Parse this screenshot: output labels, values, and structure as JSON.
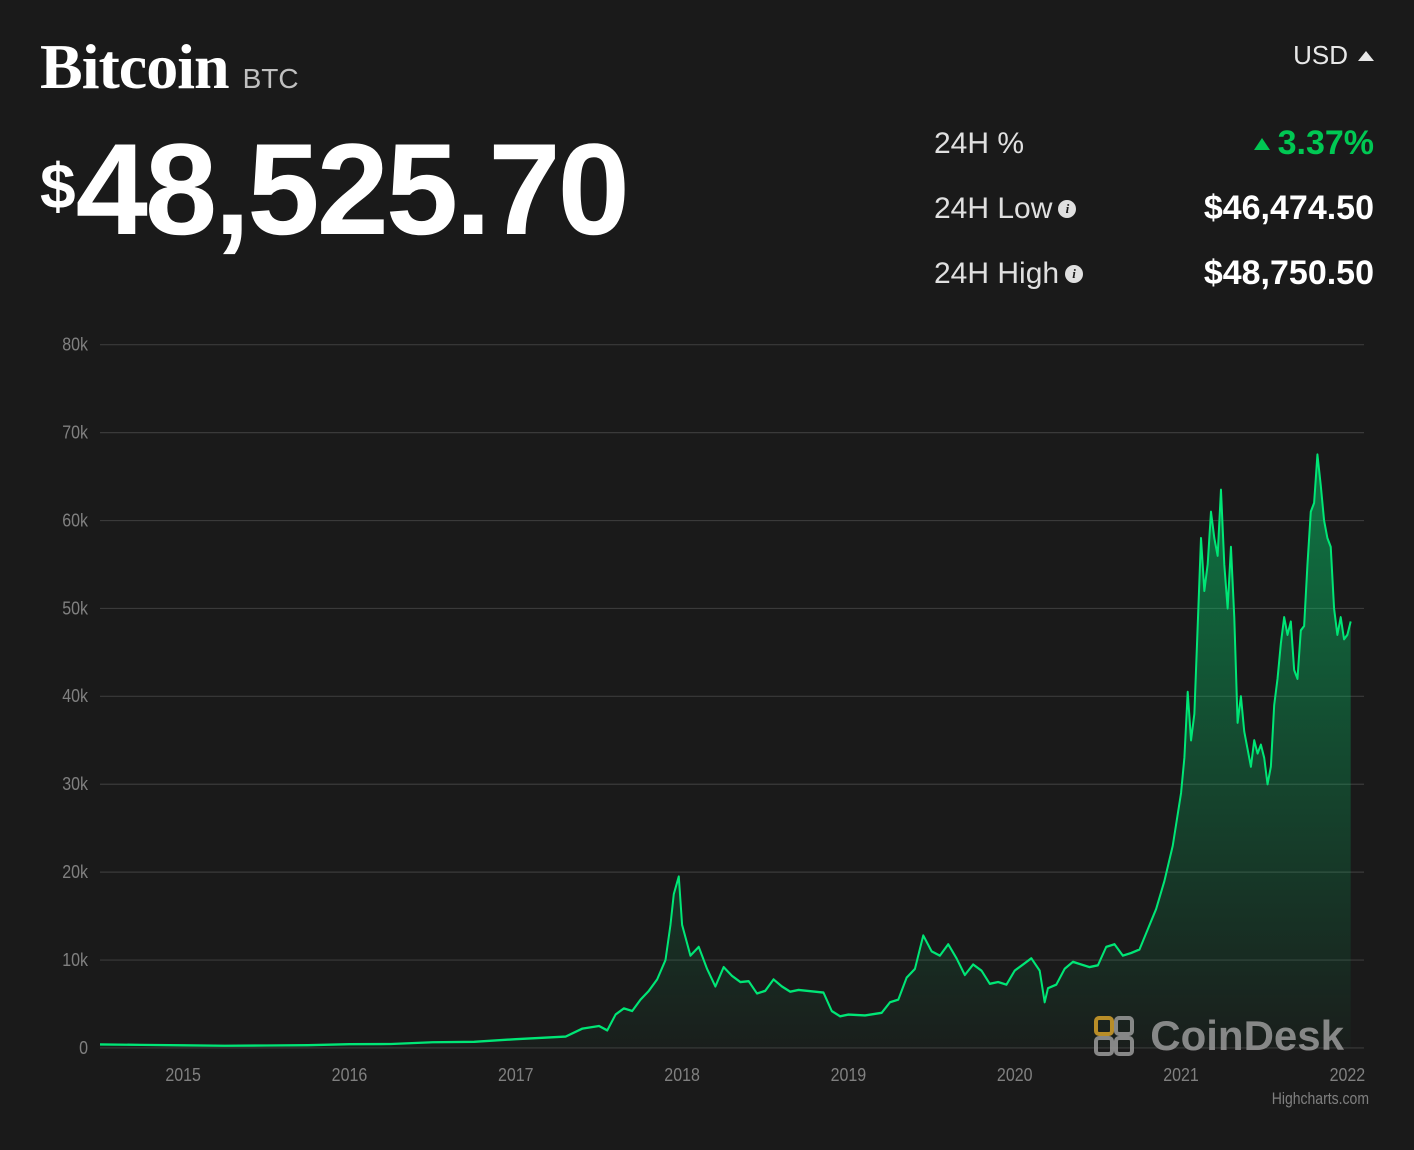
{
  "header": {
    "asset_name": "Bitcoin",
    "asset_ticker": "BTC",
    "currency_label": "USD"
  },
  "price": {
    "currency_symbol": "$",
    "value": "48,525.70"
  },
  "stats": {
    "change_24h": {
      "label": "24H %",
      "value": "3.37%",
      "color": "#00c853",
      "direction": "up"
    },
    "low_24h": {
      "label": "24H Low",
      "value": "$46,474.50"
    },
    "high_24h": {
      "label": "24H High",
      "value": "$48,750.50"
    }
  },
  "chart": {
    "type": "area",
    "background_color": "#1a1a1a",
    "line_color": "#00e676",
    "fill_color_top": "rgba(0,230,118,0.45)",
    "fill_color_bottom": "rgba(0,230,118,0.02)",
    "grid_color": "#3a3a3a",
    "axis_label_color": "#808080",
    "axis_label_fontsize": 16,
    "line_width": 2,
    "ylim": [
      0,
      80000
    ],
    "ytick_step": 10000,
    "ytick_labels": [
      "0",
      "10k",
      "20k",
      "30k",
      "40k",
      "50k",
      "60k",
      "70k",
      "80k"
    ],
    "xlim": [
      2014.5,
      2022.1
    ],
    "xtick_positions": [
      2015,
      2016,
      2017,
      2018,
      2019,
      2020,
      2021,
      2022
    ],
    "xtick_labels": [
      "2015",
      "2016",
      "2017",
      "2018",
      "2019",
      "2020",
      "2021",
      "2022"
    ],
    "credit": "Highcharts.com",
    "series": [
      [
        2014.5,
        400
      ],
      [
        2014.75,
        350
      ],
      [
        2015.0,
        300
      ],
      [
        2015.25,
        250
      ],
      [
        2015.5,
        280
      ],
      [
        2015.75,
        320
      ],
      [
        2016.0,
        430
      ],
      [
        2016.25,
        450
      ],
      [
        2016.5,
        650
      ],
      [
        2016.75,
        700
      ],
      [
        2017.0,
        1000
      ],
      [
        2017.1,
        1100
      ],
      [
        2017.2,
        1200
      ],
      [
        2017.3,
        1300
      ],
      [
        2017.4,
        2200
      ],
      [
        2017.5,
        2500
      ],
      [
        2017.55,
        2000
      ],
      [
        2017.6,
        3800
      ],
      [
        2017.65,
        4500
      ],
      [
        2017.7,
        4200
      ],
      [
        2017.75,
        5500
      ],
      [
        2017.8,
        6500
      ],
      [
        2017.85,
        7800
      ],
      [
        2017.9,
        10000
      ],
      [
        2017.93,
        14000
      ],
      [
        2017.95,
        17500
      ],
      [
        2017.98,
        19500
      ],
      [
        2018.0,
        14000
      ],
      [
        2018.05,
        10500
      ],
      [
        2018.1,
        11500
      ],
      [
        2018.15,
        9000
      ],
      [
        2018.2,
        7000
      ],
      [
        2018.25,
        9200
      ],
      [
        2018.3,
        8200
      ],
      [
        2018.35,
        7500
      ],
      [
        2018.4,
        7600
      ],
      [
        2018.45,
        6200
      ],
      [
        2018.5,
        6500
      ],
      [
        2018.55,
        7800
      ],
      [
        2018.6,
        7000
      ],
      [
        2018.65,
        6400
      ],
      [
        2018.7,
        6600
      ],
      [
        2018.75,
        6500
      ],
      [
        2018.8,
        6400
      ],
      [
        2018.85,
        6300
      ],
      [
        2018.9,
        4200
      ],
      [
        2018.95,
        3600
      ],
      [
        2019.0,
        3800
      ],
      [
        2019.1,
        3700
      ],
      [
        2019.2,
        4000
      ],
      [
        2019.25,
        5200
      ],
      [
        2019.3,
        5500
      ],
      [
        2019.35,
        8000
      ],
      [
        2019.4,
        9000
      ],
      [
        2019.45,
        12800
      ],
      [
        2019.5,
        11000
      ],
      [
        2019.55,
        10500
      ],
      [
        2019.6,
        11800
      ],
      [
        2019.65,
        10200
      ],
      [
        2019.7,
        8300
      ],
      [
        2019.75,
        9500
      ],
      [
        2019.8,
        8800
      ],
      [
        2019.85,
        7300
      ],
      [
        2019.9,
        7500
      ],
      [
        2019.95,
        7200
      ],
      [
        2020.0,
        8800
      ],
      [
        2020.05,
        9500
      ],
      [
        2020.1,
        10200
      ],
      [
        2020.15,
        8800
      ],
      [
        2020.18,
        5200
      ],
      [
        2020.2,
        6800
      ],
      [
        2020.25,
        7200
      ],
      [
        2020.3,
        9000
      ],
      [
        2020.35,
        9800
      ],
      [
        2020.4,
        9500
      ],
      [
        2020.45,
        9200
      ],
      [
        2020.5,
        9400
      ],
      [
        2020.55,
        11500
      ],
      [
        2020.6,
        11800
      ],
      [
        2020.65,
        10500
      ],
      [
        2020.7,
        10800
      ],
      [
        2020.75,
        11200
      ],
      [
        2020.8,
        13500
      ],
      [
        2020.85,
        15800
      ],
      [
        2020.9,
        19000
      ],
      [
        2020.95,
        23000
      ],
      [
        2021.0,
        29000
      ],
      [
        2021.02,
        33000
      ],
      [
        2021.04,
        40500
      ],
      [
        2021.06,
        35000
      ],
      [
        2021.08,
        38000
      ],
      [
        2021.1,
        48000
      ],
      [
        2021.12,
        58000
      ],
      [
        2021.14,
        52000
      ],
      [
        2021.16,
        55000
      ],
      [
        2021.18,
        61000
      ],
      [
        2021.2,
        58000
      ],
      [
        2021.22,
        56000
      ],
      [
        2021.24,
        63500
      ],
      [
        2021.26,
        55000
      ],
      [
        2021.28,
        50000
      ],
      [
        2021.3,
        57000
      ],
      [
        2021.32,
        49000
      ],
      [
        2021.34,
        37000
      ],
      [
        2021.36,
        40000
      ],
      [
        2021.38,
        36000
      ],
      [
        2021.4,
        34000
      ],
      [
        2021.42,
        32000
      ],
      [
        2021.44,
        35000
      ],
      [
        2021.46,
        33500
      ],
      [
        2021.48,
        34500
      ],
      [
        2021.5,
        33000
      ],
      [
        2021.52,
        30000
      ],
      [
        2021.54,
        32000
      ],
      [
        2021.56,
        39000
      ],
      [
        2021.58,
        42000
      ],
      [
        2021.6,
        46000
      ],
      [
        2021.62,
        49000
      ],
      [
        2021.64,
        47000
      ],
      [
        2021.66,
        48500
      ],
      [
        2021.68,
        43000
      ],
      [
        2021.7,
        42000
      ],
      [
        2021.72,
        47500
      ],
      [
        2021.74,
        48000
      ],
      [
        2021.76,
        55000
      ],
      [
        2021.78,
        61000
      ],
      [
        2021.8,
        62000
      ],
      [
        2021.82,
        67500
      ],
      [
        2021.84,
        64000
      ],
      [
        2021.86,
        60000
      ],
      [
        2021.88,
        58000
      ],
      [
        2021.9,
        57000
      ],
      [
        2021.92,
        50000
      ],
      [
        2021.94,
        47000
      ],
      [
        2021.96,
        49000
      ],
      [
        2021.98,
        46500
      ],
      [
        2022.0,
        47000
      ],
      [
        2022.02,
        48525
      ]
    ]
  },
  "watermark": {
    "text": "CoinDesk",
    "icon_color_primary": "#d4a02a",
    "icon_color_secondary": "#9a9a9a",
    "text_color": "#9a9a9a"
  }
}
